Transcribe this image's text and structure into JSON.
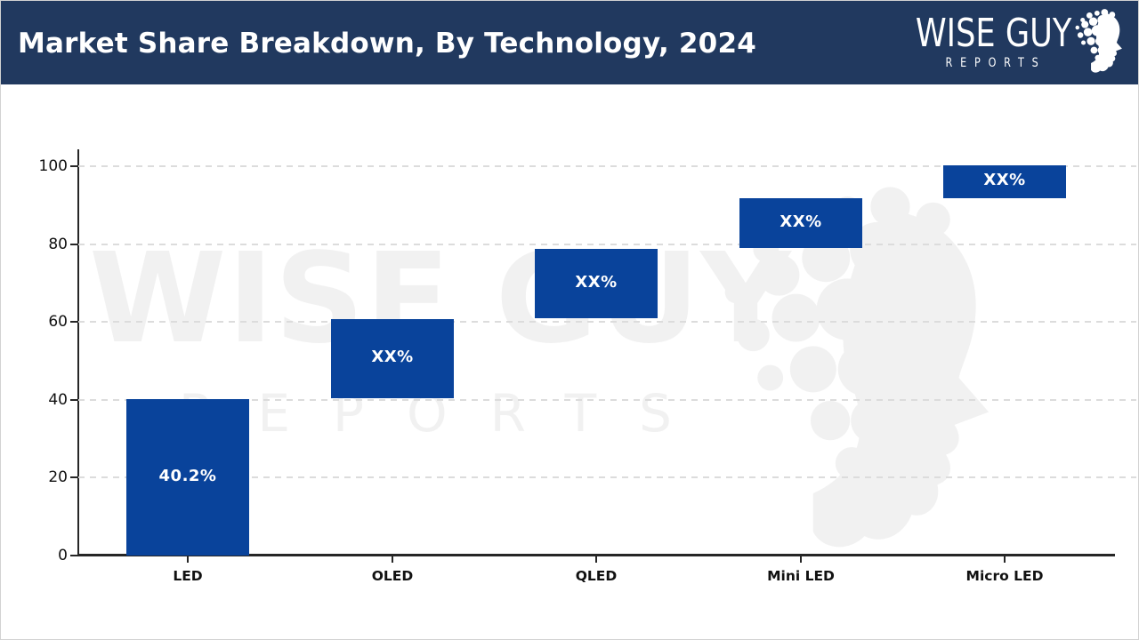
{
  "header": {
    "title": "Market Share Breakdown, By Technology, 2024",
    "logo": {
      "brand": "WISE GUY",
      "sub": "REPORTS"
    }
  },
  "watermark": {
    "brand": "WISE GUY",
    "sub": "REPORTS"
  },
  "colors": {
    "header_bg": "#21395f",
    "bar": "#09439b",
    "bar_label": "#ffffff",
    "axis": "#262626",
    "tick_label": "#111111",
    "grid": "#dcdcdc",
    "watermark": "#f1f1f1",
    "frame": "#d2d2d2",
    "canvas": "#ffffff"
  },
  "chart_data": {
    "type": "bar",
    "subtype": "waterfall",
    "title": "Market Share Breakdown, By Technology, 2024",
    "categories": [
      "LED",
      "OLED",
      "QLED",
      "Mini LED",
      "Micro LED"
    ],
    "series": [
      {
        "name": "Market share (%)",
        "segments": [
          {
            "category": "LED",
            "start": 0,
            "end": 40.2,
            "label": "40.2%"
          },
          {
            "category": "OLED",
            "start": 40.5,
            "end": 60.8,
            "label": "XX%"
          },
          {
            "category": "QLED",
            "start": 61.0,
            "end": 78.8,
            "label": "XX%"
          },
          {
            "category": "Mini LED",
            "start": 79.0,
            "end": 91.7,
            "label": "XX%"
          },
          {
            "category": "Micro LED",
            "start": 91.8,
            "end": 100.3,
            "label": "XX%"
          }
        ]
      }
    ],
    "yticks": [
      0,
      20,
      40,
      60,
      80,
      100
    ],
    "ylim": [
      0,
      104
    ],
    "xlabel": "",
    "ylabel": "",
    "grid": "horizontal-dashed",
    "legend": "none"
  }
}
